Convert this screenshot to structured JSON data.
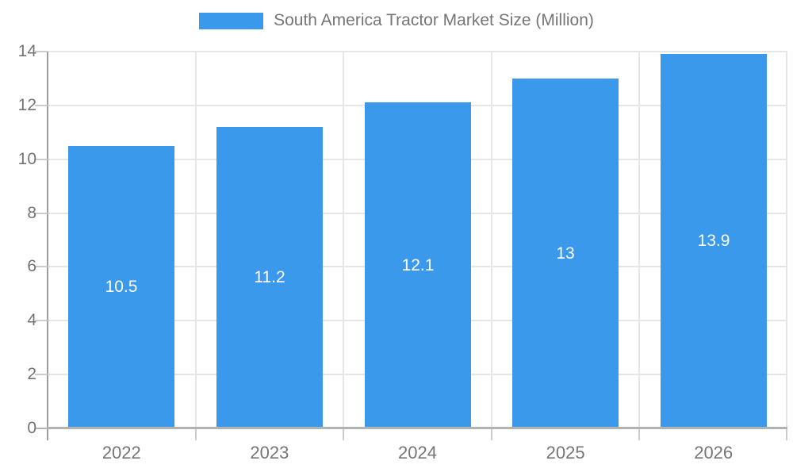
{
  "legend": {
    "label": "South America Tractor Market Size (Million)"
  },
  "chart_data": {
    "type": "bar",
    "title": "South America Tractor Market Size (Million)",
    "categories": [
      "2022",
      "2023",
      "2024",
      "2025",
      "2026"
    ],
    "values": [
      10.5,
      11.2,
      12.1,
      13,
      13.9
    ],
    "value_labels": [
      "10.5",
      "11.2",
      "12.1",
      "13",
      "13.9"
    ],
    "xlabel": "",
    "ylabel": "",
    "ylim": [
      0,
      14
    ],
    "yticks": [
      0,
      2,
      4,
      6,
      8,
      10,
      12,
      14
    ],
    "grid": true,
    "legend_position": "top-center"
  },
  "colors": {
    "bar": "#3b99ec",
    "bar_value_text": "#ffffff",
    "axis_text": "#757575",
    "gridline": "#e6e6e6",
    "y_axis_line": "#9e9e9e",
    "baseline": "#b3b3b3",
    "tick": "#cccccc",
    "background": "#ffffff"
  }
}
